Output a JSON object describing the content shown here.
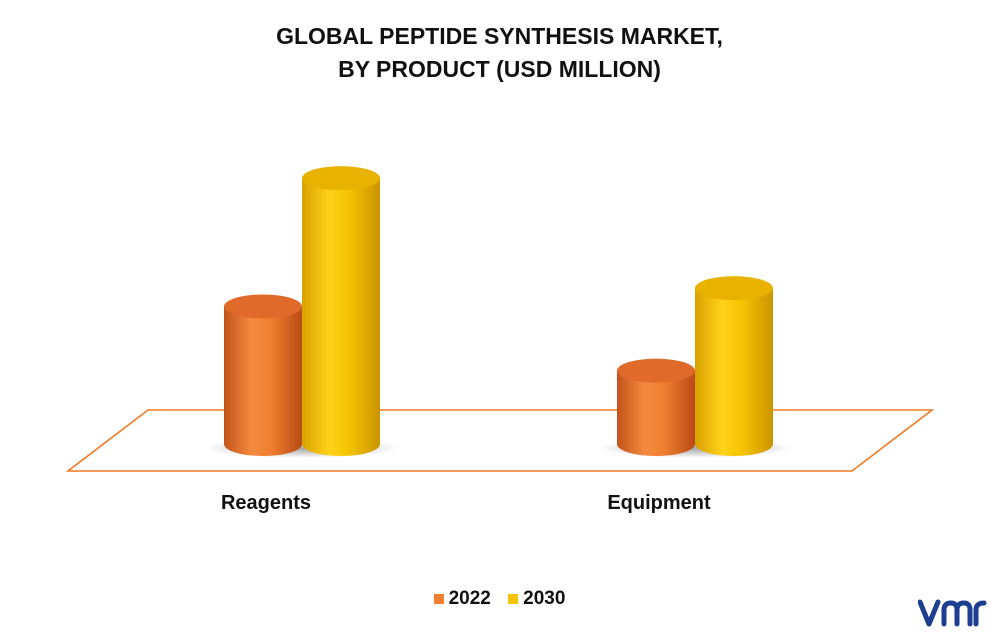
{
  "title": {
    "line1": "GLOBAL PEPTIDE SYNTHESIS MARKET,",
    "line2": "BY PRODUCT (USD MILLION)"
  },
  "chart_data": {
    "type": "bar",
    "title": "GLOBAL PEPTIDE SYNTHESIS MARKET, BY PRODUCT (USD MILLION)",
    "categories": [
      "Reagents",
      "Equipment"
    ],
    "series": [
      {
        "name": "2022",
        "values": [
          1.5,
          0.8
        ]
      },
      {
        "name": "2030",
        "values": [
          2.9,
          1.7
        ]
      }
    ],
    "ylim": [
      0,
      3
    ],
    "grid": false,
    "legend_position": "bottom",
    "colors": {
      "2022": "#F08030",
      "2030": "#F5C400"
    }
  },
  "legend": {
    "items": [
      {
        "label": "2022",
        "color": "#F08030"
      },
      {
        "label": "2030",
        "color": "#F5C400"
      }
    ]
  },
  "logo": {
    "text": "vmr",
    "color": "#1E3F8F"
  }
}
